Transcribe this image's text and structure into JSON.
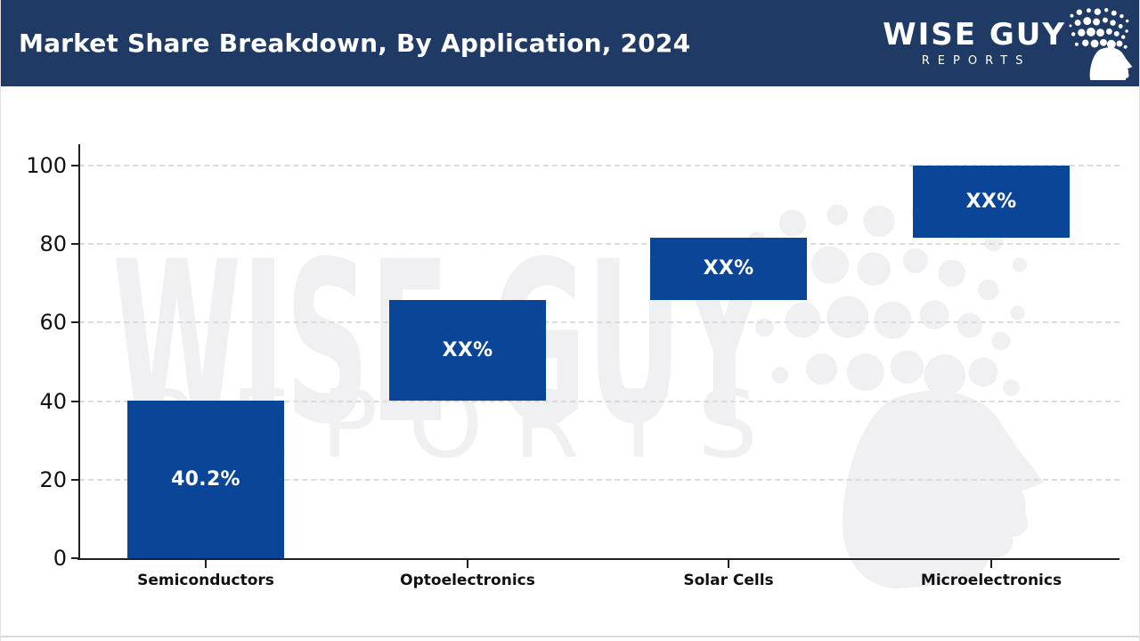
{
  "header": {
    "title": "Market Share Breakdown, By Application, 2024",
    "logo": {
      "line1": "WISE GUY",
      "line2": "REPORTS"
    }
  },
  "watermark": {
    "line1": "WISE GUY",
    "line2": "R E P O R T S"
  },
  "colors": {
    "header_bg": "#203a66",
    "bar": "#0b4598",
    "bar_label": "#ffffff",
    "grid": "#dcdcdc",
    "axis": "#1f1f1f",
    "watermark": "#f0f0f2"
  },
  "chart_data": {
    "type": "bar",
    "subtype": "waterfall (floating stacked segments, one per category)",
    "title": "Market Share Breakdown, By Application, 2024",
    "categories": [
      "Semiconductors",
      "Optoelectronics",
      "Solar Cells",
      "Microelectronics"
    ],
    "segments": [
      {
        "category": "Semiconductors",
        "start": 0,
        "end": 40.2,
        "value": 40.2,
        "label": "40.2%"
      },
      {
        "category": "Optoelectronics",
        "start": 40.2,
        "end": 65.8,
        "value": 25.6,
        "label": "XX%"
      },
      {
        "category": "Solar Cells",
        "start": 65.8,
        "end": 81.7,
        "value": 15.9,
        "label": "XX%"
      },
      {
        "category": "Microelectronics",
        "start": 81.7,
        "end": 100,
        "value": 18.3,
        "label": "XX%"
      }
    ],
    "xlabel": "",
    "ylabel": "",
    "ylim": [
      0,
      100
    ],
    "yticks": [
      0,
      20,
      40,
      60,
      80,
      100
    ],
    "grid": "horizontal dashed, behind bars",
    "legend": "none"
  }
}
